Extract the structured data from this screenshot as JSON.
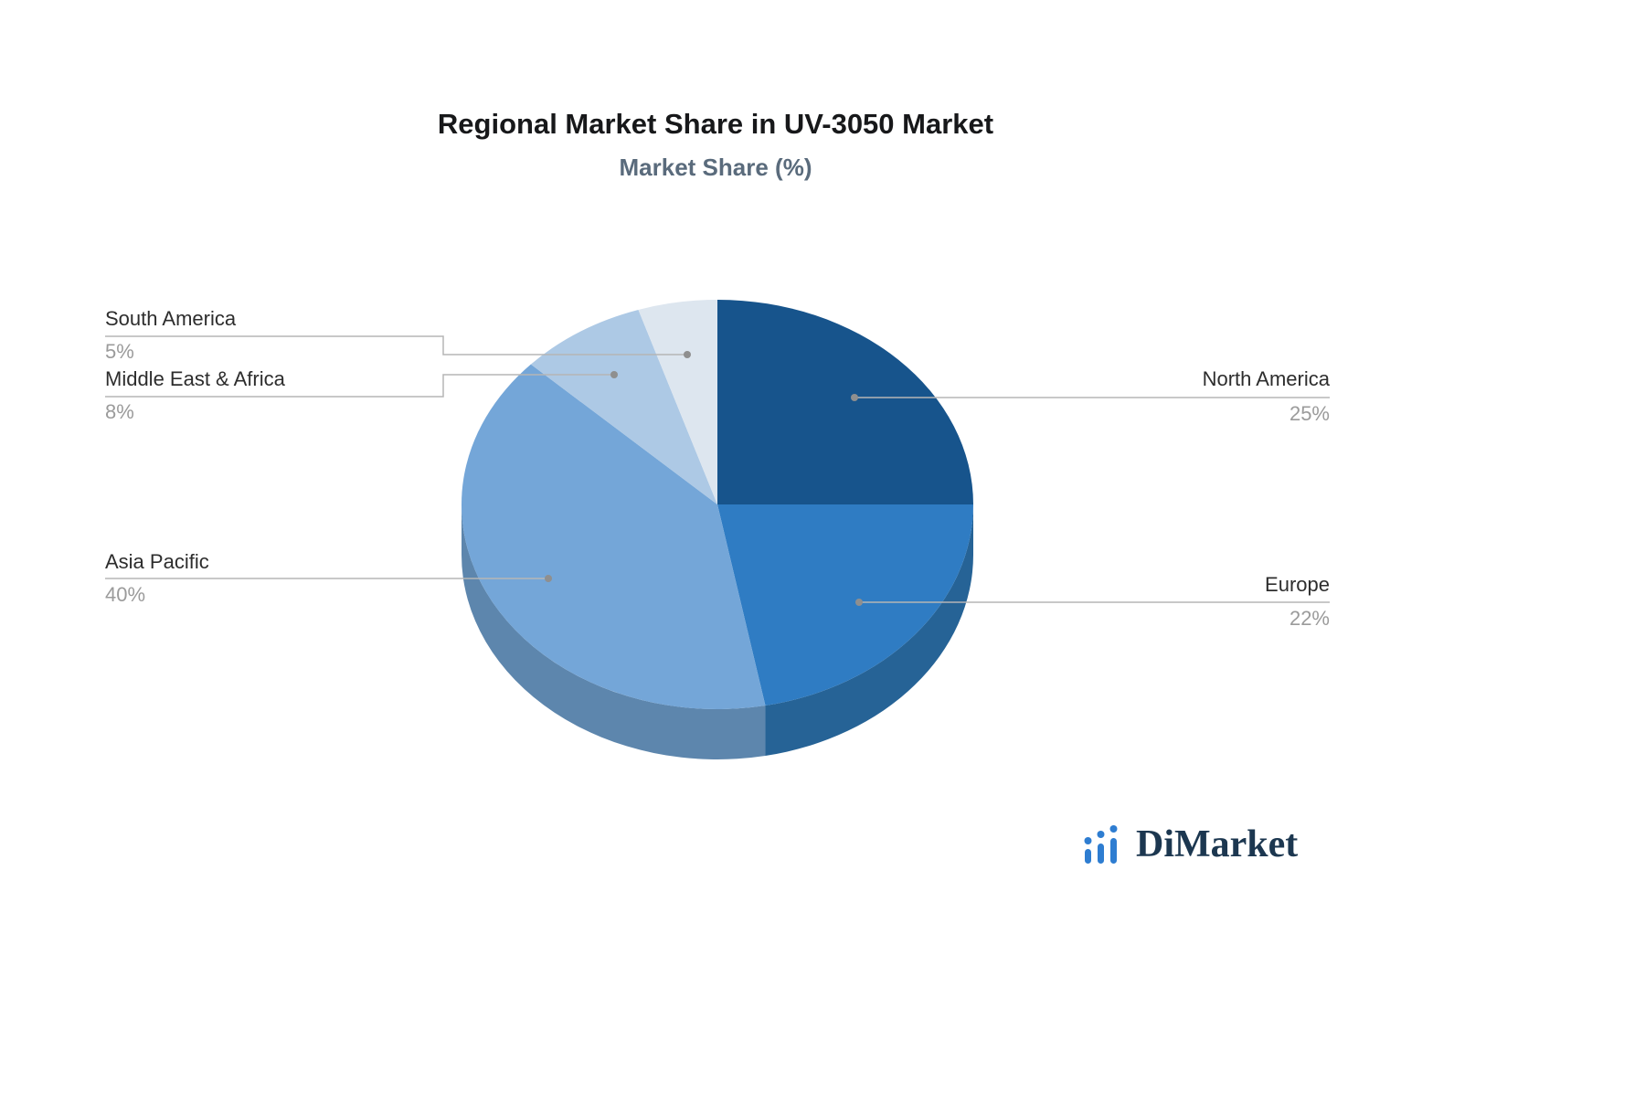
{
  "header": {
    "title": "Regional Market Share in UV-3050 Market",
    "subtitle": "Market Share (%)"
  },
  "chart_data": {
    "type": "pie",
    "title": "Regional Market Share in UV-3050 Market",
    "subtitle": "Market Share (%)",
    "unit": "%",
    "start_angle_deg": 0,
    "direction": "clockwise",
    "style": "3d-pie",
    "slices": [
      {
        "label": "North America",
        "value": 25,
        "display": "25%",
        "color": "#17548c",
        "side_color": "#103f6a"
      },
      {
        "label": "Europe",
        "value": 22,
        "display": "22%",
        "color": "#2f7cc3",
        "side_color": "#266396"
      },
      {
        "label": "Asia Pacific",
        "value": 40,
        "display": "40%",
        "color": "#74a6d8",
        "side_color": "#5d86ad"
      },
      {
        "label": "Middle East & Africa",
        "value": 8,
        "display": "8%",
        "color": "#adc9e5",
        "side_color": "#8aa3ba"
      },
      {
        "label": "South America",
        "value": 5,
        "display": "5%",
        "color": "#dde6ef",
        "side_color": "#b2bcc7"
      }
    ],
    "leader_line_color": "#b5b5b5",
    "leader_dot_color": "#8f8f8f"
  },
  "branding": {
    "logo_text": "DiMarket",
    "logo_color": "#2e7dd1"
  }
}
